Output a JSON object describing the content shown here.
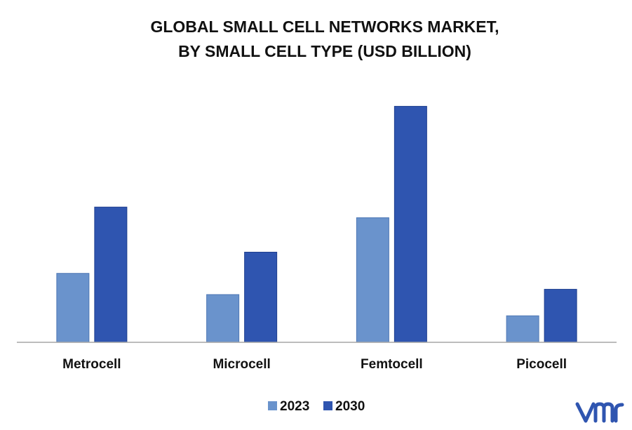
{
  "chart_data": {
    "type": "bar",
    "title_lines": [
      "GLOBAL SMALL CELL NETWORKS MARKET,",
      "BY SMALL CELL TYPE (USD BILLION)"
    ],
    "categories": [
      "Metrocell",
      "Microcell",
      "Femtocell",
      "Picocell"
    ],
    "series": [
      {
        "name": "2023",
        "values": [
          2.6,
          1.8,
          4.7,
          1.0
        ],
        "color": "#6a93cc"
      },
      {
        "name": "2030",
        "values": [
          5.1,
          3.4,
          8.9,
          2.0
        ],
        "color": "#2f55b0"
      }
    ],
    "ylim": [
      0,
      10
    ],
    "grid": false,
    "legend_position": "bottom"
  },
  "colors": {
    "axis": "#a6a6a6",
    "bar_edge_2023": "#4f78b5",
    "bar_edge_2030": "#1e3f8e",
    "logo": "#2f55b0"
  }
}
